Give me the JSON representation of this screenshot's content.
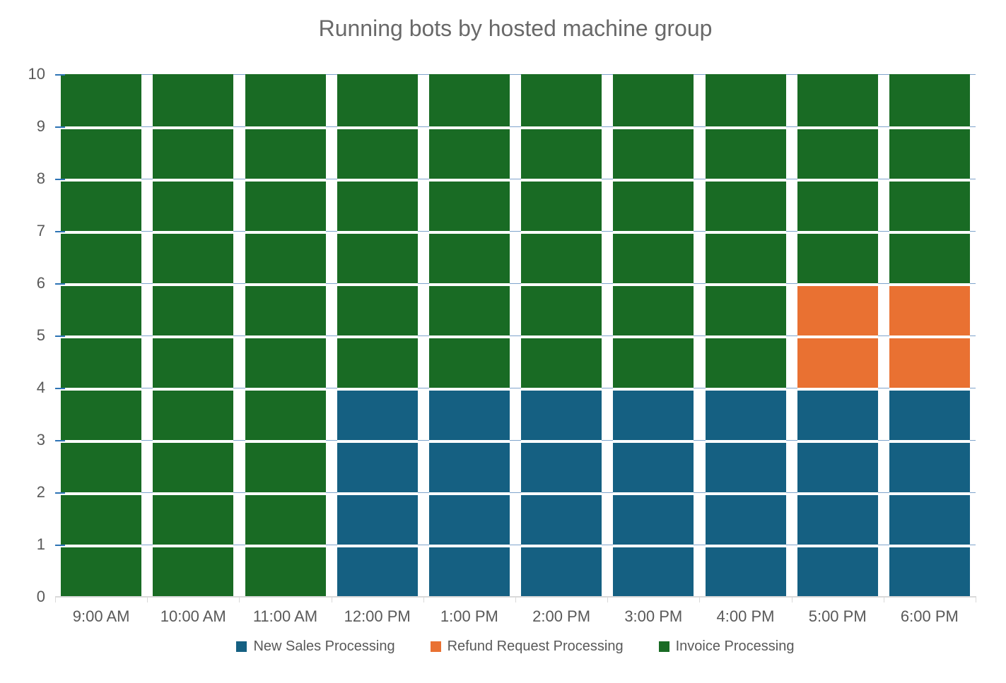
{
  "title": "Running bots by hosted machine group",
  "colors": {
    "background": "#ffffff",
    "title_text": "#696969",
    "axis_text": "#595959",
    "gridline": "#7fa4cc",
    "gridline_tick": "#2e74b5",
    "axis_line": "#d9d9d9",
    "series_blue": "#156082",
    "series_orange": "#e97132",
    "series_green": "#196b24"
  },
  "chart_data": {
    "type": "bar",
    "stacked": true,
    "unit_blocks": true,
    "title": "Running bots by hosted machine group",
    "xlabel": "",
    "ylabel": "",
    "categories": [
      "9:00 AM",
      "10:00 AM",
      "11:00 AM",
      "12:00 PM",
      "1:00 PM",
      "2:00 PM",
      "3:00 PM",
      "4:00 PM",
      "5:00 PM",
      "6:00 PM"
    ],
    "series": [
      {
        "name": "New Sales Processing",
        "color": "#156082",
        "values": [
          0,
          0,
          0,
          4,
          4,
          4,
          4,
          4,
          4,
          4
        ]
      },
      {
        "name": "Refund Request Processing",
        "color": "#e97132",
        "values": [
          0,
          0,
          0,
          0,
          0,
          0,
          0,
          0,
          2,
          2
        ]
      },
      {
        "name": "Invoice Processing",
        "color": "#196b24",
        "values": [
          10,
          10,
          10,
          6,
          6,
          6,
          6,
          6,
          4,
          4
        ]
      }
    ],
    "totals_per_category": [
      10,
      10,
      10,
      10,
      10,
      10,
      10,
      10,
      10,
      10
    ],
    "ylim": [
      0,
      10
    ],
    "yticks": [
      "0",
      "1",
      "2",
      "3",
      "4",
      "5",
      "6",
      "7",
      "8",
      "9",
      "10"
    ],
    "grid": true,
    "legend_position": "bottom"
  }
}
